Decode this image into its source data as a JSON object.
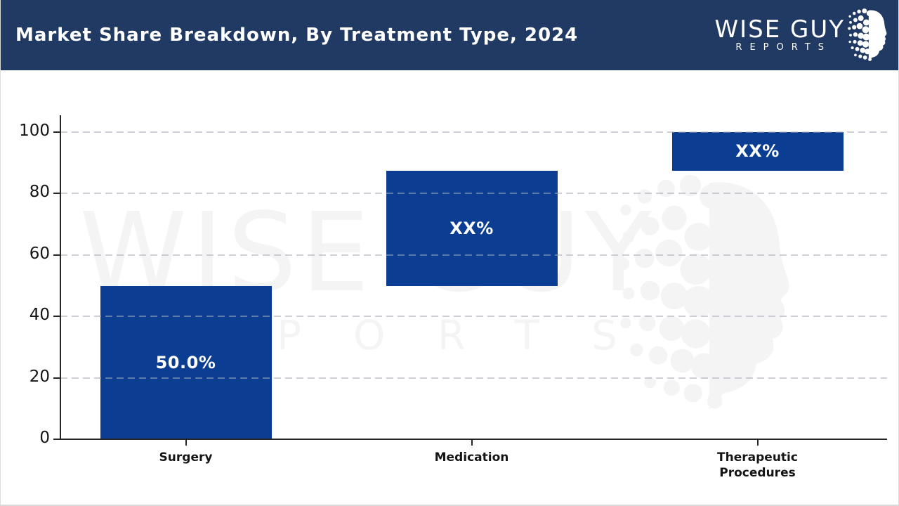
{
  "header": {
    "title": "Market Share Breakdown, By Treatment Type, 2024",
    "background": "#213a64",
    "logo": {
      "line1": "WISE GUY",
      "line2": "REPORTS",
      "head_icon": "dotted-head-profile"
    }
  },
  "watermark": {
    "line1": "WISE GUY",
    "line2": "REPORTS",
    "head_icon": "dotted-head-profile",
    "color": "#f4f4f4"
  },
  "chart_data": {
    "type": "bar",
    "subtype": "waterfall-stacked-segments",
    "title": "Market Share Breakdown, By Treatment Type, 2024",
    "categories": [
      "Surgery",
      "Medication",
      "Therapeutic Procedures"
    ],
    "bars": [
      {
        "category": "Surgery",
        "from": 0,
        "to": 50,
        "label": "50.0%"
      },
      {
        "category": "Medication",
        "from": 50,
        "to": 87.5,
        "label": "XX%"
      },
      {
        "category": "Therapeutic Procedures",
        "from": 87.5,
        "to": 100,
        "label": "XX%"
      }
    ],
    "values_pct": [
      50.0,
      37.5,
      12.5
    ],
    "yticks": [
      0,
      20,
      40,
      60,
      80,
      100
    ],
    "ylim": [
      0,
      105
    ],
    "xlabel": "",
    "ylabel": "",
    "grid": "horizontal-dashed-over-bars",
    "legend": "none",
    "bar_color": "#0b3e92",
    "label_color": "#ffffff",
    "axis_color": "#262626",
    "grid_color": "#d9d9d9",
    "background": "#ffffff"
  }
}
